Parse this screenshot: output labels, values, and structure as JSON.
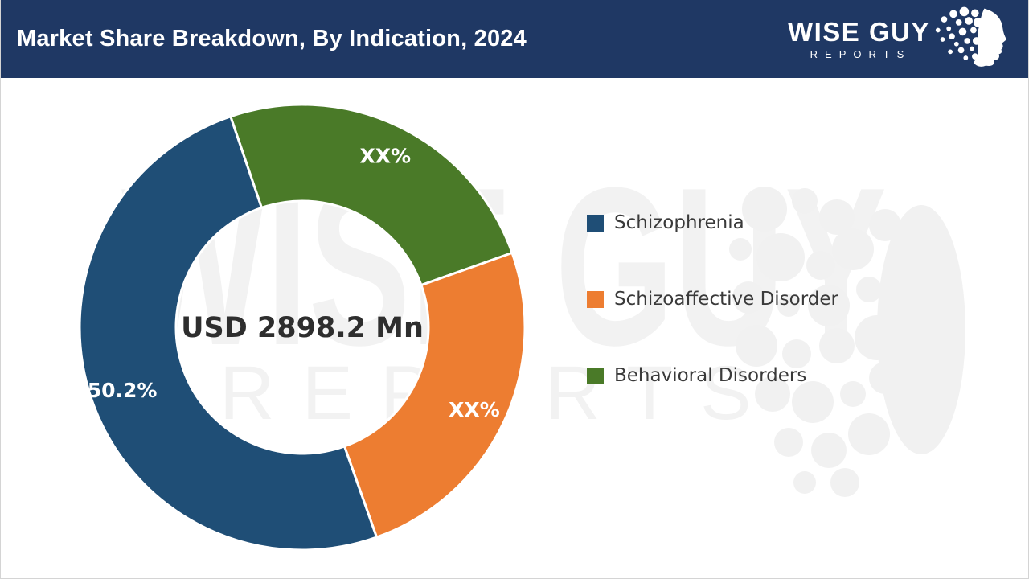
{
  "header": {
    "title": "Market Share Breakdown, By Indication, 2024",
    "bg_color": "#1f3864",
    "brand": {
      "name": "WISE GUY",
      "sub": "REPORTS"
    }
  },
  "watermark": {
    "line1": "WISE GUY",
    "line2": "REPORTS"
  },
  "chart_data": {
    "type": "pie",
    "subtype": "donut",
    "title": "Market Share Breakdown, By Indication, 2024",
    "center_label": "USD 2898.2 Mn",
    "categories": [
      "Schizophrenia",
      "Schizoaffective Disorder",
      "Behavioral Disorders"
    ],
    "values": [
      50.2,
      25.0,
      24.8
    ],
    "display_labels": [
      "50.2%",
      "XX%",
      "XX%"
    ],
    "colors": [
      "#1f4e76",
      "#ed7d31",
      "#4a7a28"
    ],
    "legend_position": "right",
    "start_angle_deg": -18.8,
    "direction": "clockwise",
    "draw_order": [
      2,
      1,
      0
    ]
  }
}
